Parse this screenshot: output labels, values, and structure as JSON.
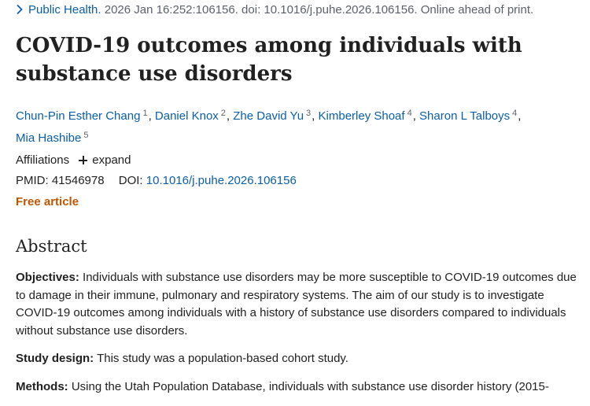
{
  "citation": {
    "journal": "Public Health.",
    "details": " 2026 Jan 16:252:106156. doi: 10.1016/j.puhe.2026.106156. Online ahead of print."
  },
  "title": "COVID-19 outcomes among individuals with substance use disorders",
  "authors": [
    {
      "name": "Chun-Pin Esther Chang",
      "aff": "1"
    },
    {
      "name": "Daniel Knox",
      "aff": "2"
    },
    {
      "name": "Zhe David Yu",
      "aff": "3"
    },
    {
      "name": "Kimberley Shoaf",
      "aff": "4"
    },
    {
      "name": "Sharon L Talboys",
      "aff": "4"
    },
    {
      "name": "Mia Hashibe",
      "aff": "5"
    }
  ],
  "affiliations": {
    "label": "Affiliations",
    "expand_label": "expand"
  },
  "ids": {
    "pmid_label": "PMID:",
    "pmid": "41546978",
    "doi_label": "DOI:",
    "doi": "10.1016/j.puhe.2026.106156"
  },
  "free_article_label": "Free article",
  "abstract": {
    "heading": "Abstract",
    "sections": [
      {
        "label": "Objectives:",
        "text": "Individuals with substance use disorders may be more susceptible to COVID-19 outcomes due to damage in their immune, pulmonary and respiratory systems. The aim of our study is to investigate COVID-19 outcomes among individuals with a history of substance use disorders compared to individuals without substance use disorders."
      },
      {
        "label": "Study design:",
        "text": "This study was a population-based cohort study."
      },
      {
        "label": "Methods:",
        "text": "Using the Utah Population Database, individuals with substance use disorder history (2015-"
      }
    ]
  },
  "colors": {
    "link": "#0b5ea8",
    "free_article": "#c05600",
    "text": "#212121",
    "muted": "#5b616b"
  },
  "icons": {
    "citation": "chevron-right-icon",
    "expand": "plus-icon"
  }
}
